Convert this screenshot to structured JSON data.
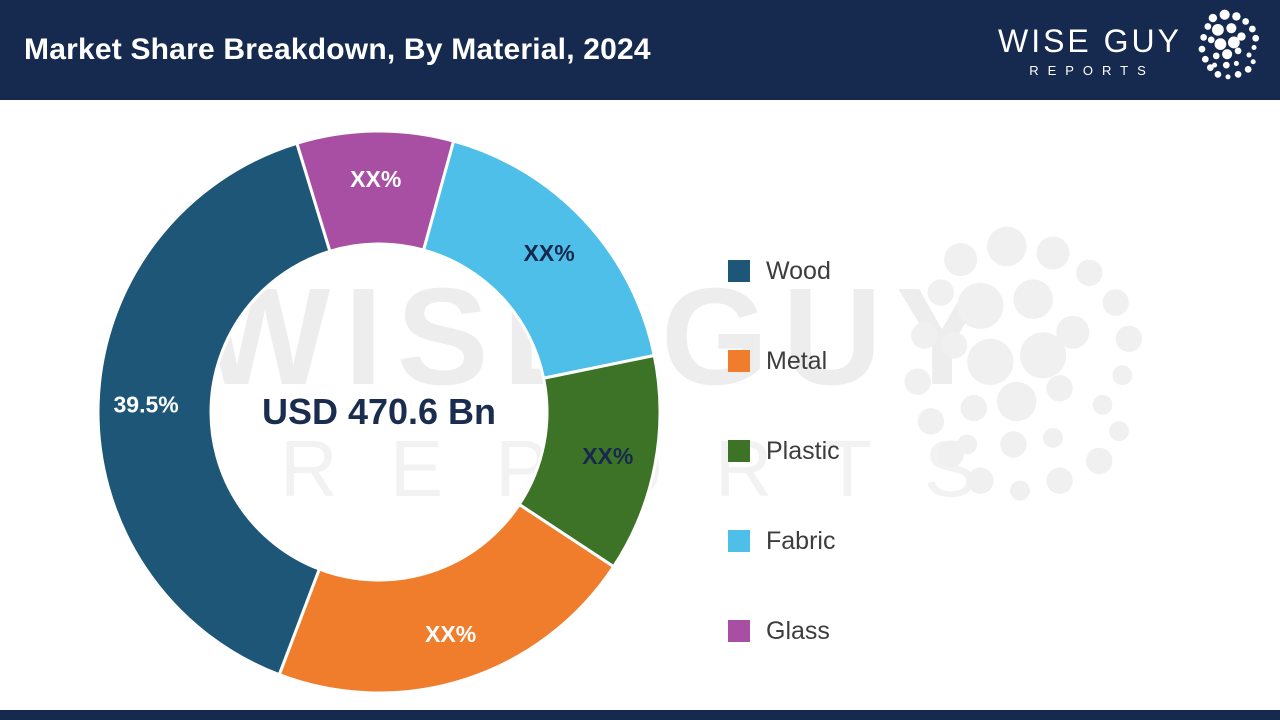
{
  "header": {
    "title": "Market Share Breakdown, By Material, 2024",
    "logo": {
      "line1": "WISE GUY",
      "line2": "REPORTS"
    }
  },
  "watermark": {
    "line1": "WISE GUY",
    "line2": "REPORTS"
  },
  "chart_data": {
    "type": "donut",
    "title": "Market Share Breakdown, By Material, 2024",
    "center_label": "USD 470.6 Bn",
    "units": "percent of market share",
    "start_angle_deg": -17,
    "legend_position": "right",
    "legend_order": [
      "Wood",
      "Metal",
      "Plastic",
      "Fabric",
      "Glass"
    ],
    "segments": [
      {
        "label": "Glass",
        "value": 9,
        "display": "XX%",
        "color": "#a84fa3",
        "text_color": "#ffffff"
      },
      {
        "label": "Fabric",
        "value": 17.5,
        "display": "XX%",
        "color": "#4dbfe8",
        "text_color": "#16294f"
      },
      {
        "label": "Plastic",
        "value": 12.5,
        "display": "XX%",
        "color": "#3d7327",
        "text_color": "#16294f"
      },
      {
        "label": "Metal",
        "value": 21.5,
        "display": "XX%",
        "color": "#ef7d2c",
        "text_color": "#ffffff"
      },
      {
        "label": "Wood",
        "value": 39.5,
        "display": "39.5%",
        "color": "#1d5677",
        "text_color": "#ffffff"
      }
    ]
  },
  "colors": {
    "header_bg": "#16294e",
    "center_text": "#1b2d4e",
    "legend_text": "#3d3d3d"
  }
}
